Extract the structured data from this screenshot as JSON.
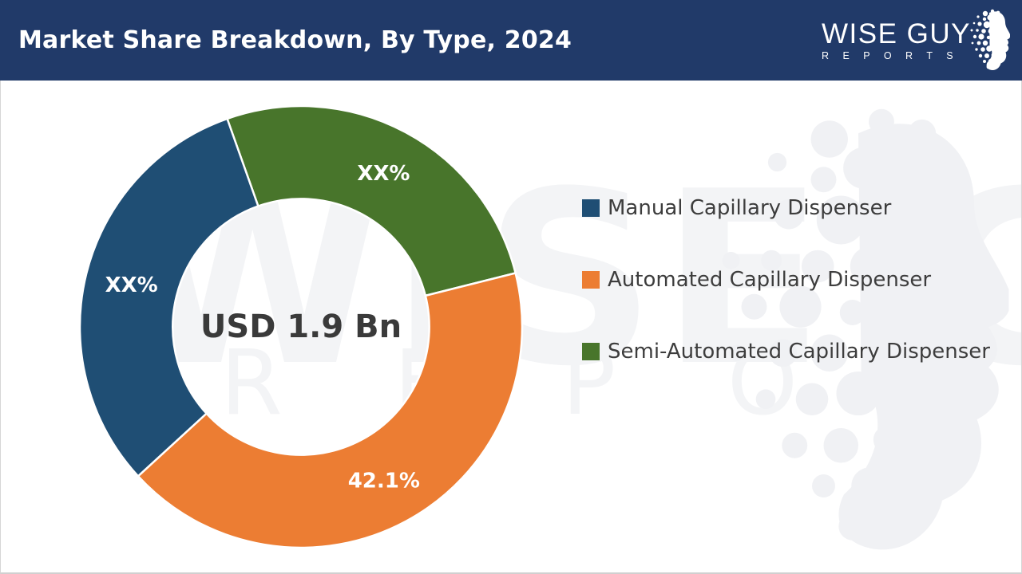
{
  "header": {
    "title": "Market Share Breakdown, By Type, 2024",
    "bg_color": "#213a69",
    "brand": {
      "name_line": "WISE GUY",
      "reports_line": "R E P O R T S"
    }
  },
  "watermark": {
    "big_text": "WISE GUY",
    "reports_text": "R E P O R T S"
  },
  "chart_data": {
    "type": "pie",
    "subtype": "donut",
    "title": "Market Share Breakdown, By Type, 2024",
    "center_label": "USD 1.9 Bn",
    "start_angle_deg": -19.5,
    "donut_hole_ratio": 0.58,
    "legend_position": "right",
    "grid": false,
    "slices": [
      {
        "name": "Semi-Automated Capillary Dispenser",
        "value_pct": 26.5,
        "display_label": "XX%",
        "color": "#48752b"
      },
      {
        "name": "Automated Capillary Dispenser",
        "value_pct": 42.1,
        "display_label": "42.1%",
        "color": "#ec7d33"
      },
      {
        "name": "Manual Capillary Dispenser",
        "value_pct": 31.4,
        "display_label": "XX%",
        "color": "#1f4e74"
      }
    ],
    "legend_order": [
      2,
      1,
      0
    ],
    "colors": {
      "slice_label": "#ffffff",
      "center_label": "#3a3a3a",
      "legend_text": "#3d3d3d",
      "slice_divider": "#ffffff"
    }
  }
}
